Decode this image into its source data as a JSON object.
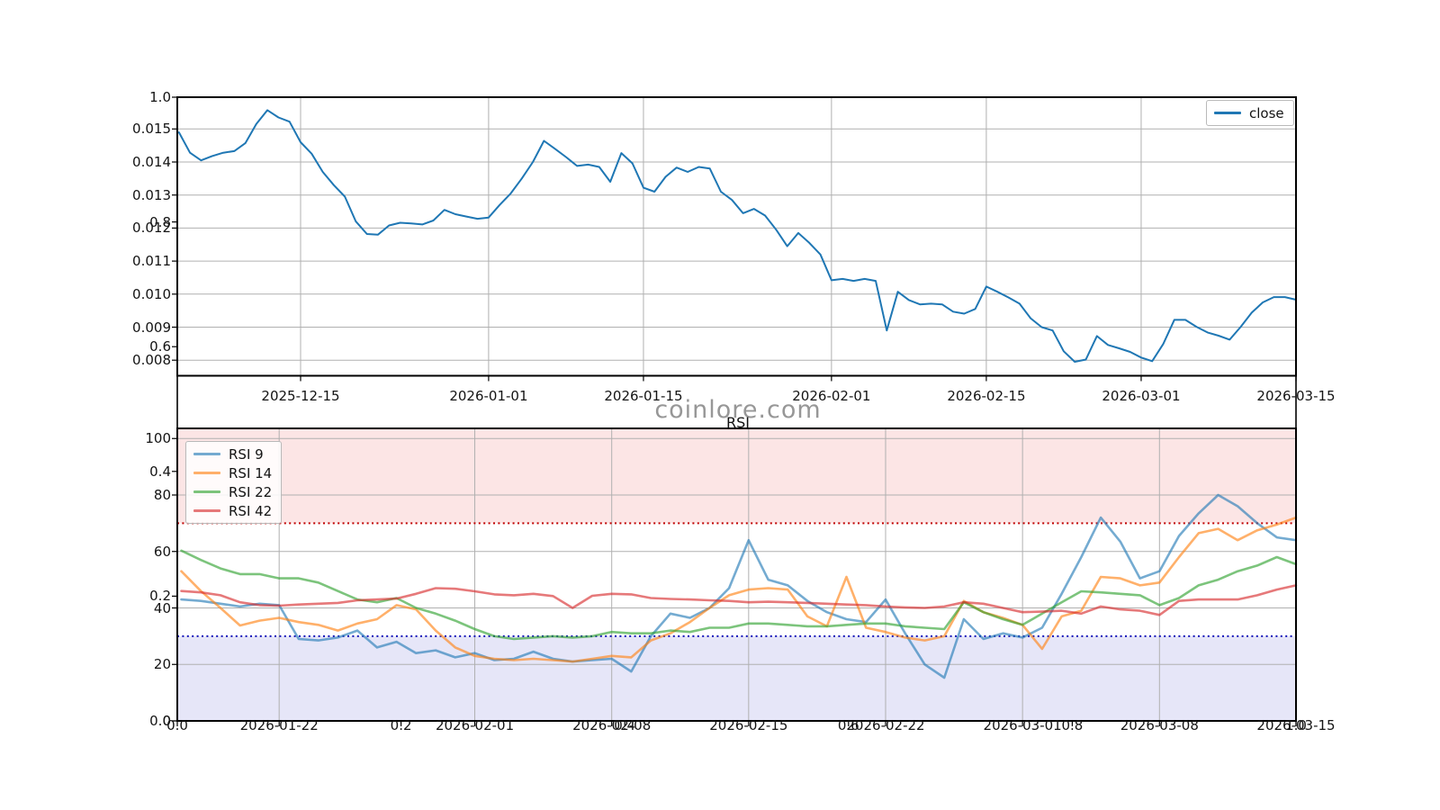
{
  "watermark": "coinlore.com",
  "rsi_chart_title": "RSI",
  "colors": {
    "close_line": "#1f77b4",
    "rsi9": "#1f77b4",
    "rsi14": "#ff7f0e",
    "rsi22": "#2ca02c",
    "rsi42": "#d62728",
    "overbought_band": "rgba(231,56,56,0.13)",
    "oversold_band": "rgba(64,64,199,0.13)",
    "overbought_line": "#c00000",
    "oversold_line": "#1414b8",
    "grid": "#b0b0b0",
    "watermark_gray": "#979797"
  },
  "overlay_axis": {
    "xtick_labels": [
      "0.0",
      "0.2",
      "0.4",
      "0.6",
      "0.8",
      "1.0"
    ],
    "ytick_labels": [
      "1.0",
      "0.8",
      "0.6",
      "0.4",
      "0.2",
      "0.0"
    ]
  },
  "chart_data": [
    {
      "type": "line",
      "name": "price",
      "title": "",
      "xlabel": "",
      "ylabel": "",
      "x_start_date": "2025-12-04",
      "x_end_date": "2026-03-15",
      "x_frequency": "daily",
      "ylim": [
        0.00755,
        0.01595
      ],
      "grid": true,
      "legend_position": "upper right",
      "legend_entries": [
        "close"
      ],
      "ytick_labels": [
        "0.015",
        "0.014",
        "0.013",
        "0.012",
        "0.011",
        "0.010",
        "0.009",
        "0.008"
      ],
      "ytick_values": [
        0.015,
        0.014,
        0.013,
        0.012,
        0.011,
        0.01,
        0.009,
        0.008
      ],
      "xticks": [
        {
          "label": "2025-12-15",
          "i": 11
        },
        {
          "label": "2026-01-01",
          "i": 28
        },
        {
          "label": "2026-01-15",
          "i": 42
        },
        {
          "label": "2026-02-01",
          "i": 59
        },
        {
          "label": "2026-02-15",
          "i": 73
        },
        {
          "label": "2026-03-01",
          "i": 87
        },
        {
          "label": "2026-03-15",
          "i": 101
        }
      ],
      "series": [
        {
          "name": "close",
          "color": "#1f77b4",
          "values": [
            0.0149,
            0.01428,
            0.01405,
            0.01418,
            0.01428,
            0.01433,
            0.01457,
            0.01515,
            0.01557,
            0.01535,
            0.01522,
            0.0146,
            0.01425,
            0.0137,
            0.0133,
            0.01295,
            0.0122,
            0.01182,
            0.0118,
            0.01208,
            0.01216,
            0.01214,
            0.01211,
            0.01223,
            0.01255,
            0.01242,
            0.01235,
            0.01228,
            0.01232,
            0.0127,
            0.01305,
            0.0135,
            0.014,
            0.01464,
            0.0144,
            0.01415,
            0.01388,
            0.01392,
            0.01385,
            0.0134,
            0.01427,
            0.01396,
            0.01322,
            0.0131,
            0.01355,
            0.01383,
            0.0137,
            0.01385,
            0.0138,
            0.0131,
            0.01285,
            0.01245,
            0.01258,
            0.01238,
            0.01195,
            0.01145,
            0.01185,
            0.01155,
            0.0112,
            0.01042,
            0.01046,
            0.0104,
            0.01046,
            0.0104,
            0.0089,
            0.01007,
            0.00982,
            0.00969,
            0.00971,
            0.00969,
            0.00947,
            0.00941,
            0.00955,
            0.01023,
            0.01007,
            0.0099,
            0.00971,
            0.00927,
            0.009,
            0.0089,
            0.00827,
            0.00795,
            0.00802,
            0.00873,
            0.00846,
            0.00836,
            0.00825,
            0.00808,
            0.00797,
            0.00849,
            0.00922,
            0.00922,
            0.00901,
            0.00884,
            0.00874,
            0.00862,
            0.00901,
            0.00944,
            0.00975,
            0.00991,
            0.00991,
            0.00983
          ]
        }
      ]
    },
    {
      "type": "line",
      "name": "RSI",
      "title": "RSI",
      "xlabel": "",
      "ylabel": "",
      "x_start_date": "2026-01-17",
      "x_end_date": "2026-03-15",
      "x_frequency": "daily",
      "ylim": [
        0,
        103.6
      ],
      "grid": true,
      "legend_position": "upper left",
      "legend_entries": [
        "RSI 9",
        "RSI 14",
        "RSI 22",
        "RSI 42"
      ],
      "ytick_labels": [
        "100",
        "80",
        "60",
        "40",
        "20",
        "0"
      ],
      "ytick_values": [
        100,
        80,
        60,
        40,
        20,
        0
      ],
      "bands": [
        {
          "name": "overbought",
          "from": 70,
          "to": 103.6,
          "color": "rgba(231,56,56,0.13)"
        },
        {
          "name": "oversold",
          "from": 0,
          "to": 30,
          "color": "rgba(64,64,199,0.13)"
        }
      ],
      "thresholds": [
        {
          "name": "overbought-threshold",
          "value": 70,
          "color": "#c00000",
          "style": "dotted"
        },
        {
          "name": "oversold-threshold",
          "value": 30,
          "color": "#1414b8",
          "style": "dotted"
        }
      ],
      "xticks": [
        {
          "label": "2026-01-22",
          "i": 5
        },
        {
          "label": "2026-02-01",
          "i": 15
        },
        {
          "label": "2026-02-08",
          "i": 22
        },
        {
          "label": "2026-02-15",
          "i": 29
        },
        {
          "label": "2026-02-22",
          "i": 36
        },
        {
          "label": "2026-03-01",
          "i": 43
        },
        {
          "label": "2026-03-08",
          "i": 50
        },
        {
          "label": "2026-03-15",
          "i": 57
        }
      ],
      "series": [
        {
          "name": "RSI 9",
          "color": "#1f77b4",
          "values": [
            43,
            42.5,
            41.5,
            40.5,
            41.5,
            41,
            29,
            28.5,
            29.5,
            32,
            26,
            28,
            24,
            25,
            22.5,
            24,
            21.5,
            22,
            24.5,
            22,
            21,
            21.5,
            22,
            17.5,
            30,
            38,
            36.5,
            40,
            47,
            64,
            50,
            48,
            42.5,
            38.5,
            36,
            35,
            43,
            31,
            20,
            15.3,
            36,
            29,
            31,
            29.5,
            33,
            45,
            58,
            72,
            63.5,
            50.5,
            53,
            65.5,
            73.5,
            80,
            76,
            70,
            65,
            64
          ]
        },
        {
          "name": "RSI 14",
          "color": "#ff7f0e",
          "values": [
            53,
            46,
            40,
            33.8,
            35.5,
            36.5,
            35,
            34,
            32,
            34.5,
            36,
            41,
            39.5,
            32,
            26,
            23,
            22,
            21.5,
            22,
            21.5,
            21,
            22,
            23,
            22.5,
            28.5,
            31,
            35,
            40,
            44.5,
            46.5,
            47,
            46.5,
            37,
            33.5,
            51,
            33,
            31.5,
            29.5,
            28.5,
            30,
            42.5,
            38.5,
            36.5,
            34,
            25.5,
            37,
            39,
            51,
            50.5,
            48,
            49,
            58,
            66.5,
            68,
            64,
            67.5,
            69.5,
            72
          ]
        },
        {
          "name": "RSI 22",
          "color": "#2ca02c",
          "values": [
            60.3,
            57,
            54,
            52,
            52,
            50.5,
            50.5,
            49,
            46,
            43,
            42,
            43.5,
            40,
            38,
            35.5,
            32.5,
            30,
            29,
            29.5,
            30,
            29.5,
            30,
            31.5,
            31,
            31,
            32,
            31.5,
            33,
            33,
            34.5,
            34.5,
            34,
            33.5,
            33.5,
            34,
            34.5,
            34.5,
            33.5,
            33,
            32.5,
            42,
            38.5,
            36,
            34,
            38,
            42,
            45.9,
            45.5,
            45,
            44.5,
            41,
            43.5,
            48,
            50,
            53,
            55,
            58,
            55.5
          ]
        },
        {
          "name": "RSI 42",
          "color": "#d62728",
          "values": [
            46,
            45.5,
            44.5,
            42,
            41,
            40.8,
            41.2,
            41.5,
            41.8,
            42.7,
            43,
            43.3,
            45,
            47,
            46.8,
            45.9,
            44.8,
            44.5,
            45,
            44.2,
            40,
            44.3,
            45,
            44.8,
            43.5,
            43.2,
            43,
            42.7,
            42.5,
            42,
            42.2,
            42,
            41.8,
            41.5,
            41.2,
            41,
            40.5,
            40.2,
            40,
            40.5,
            42,
            41.5,
            40,
            38.5,
            38.7,
            39,
            38,
            40.5,
            39.5,
            39,
            37.5,
            42.5,
            43,
            43,
            43,
            44.5,
            46.5,
            48
          ]
        }
      ]
    }
  ]
}
